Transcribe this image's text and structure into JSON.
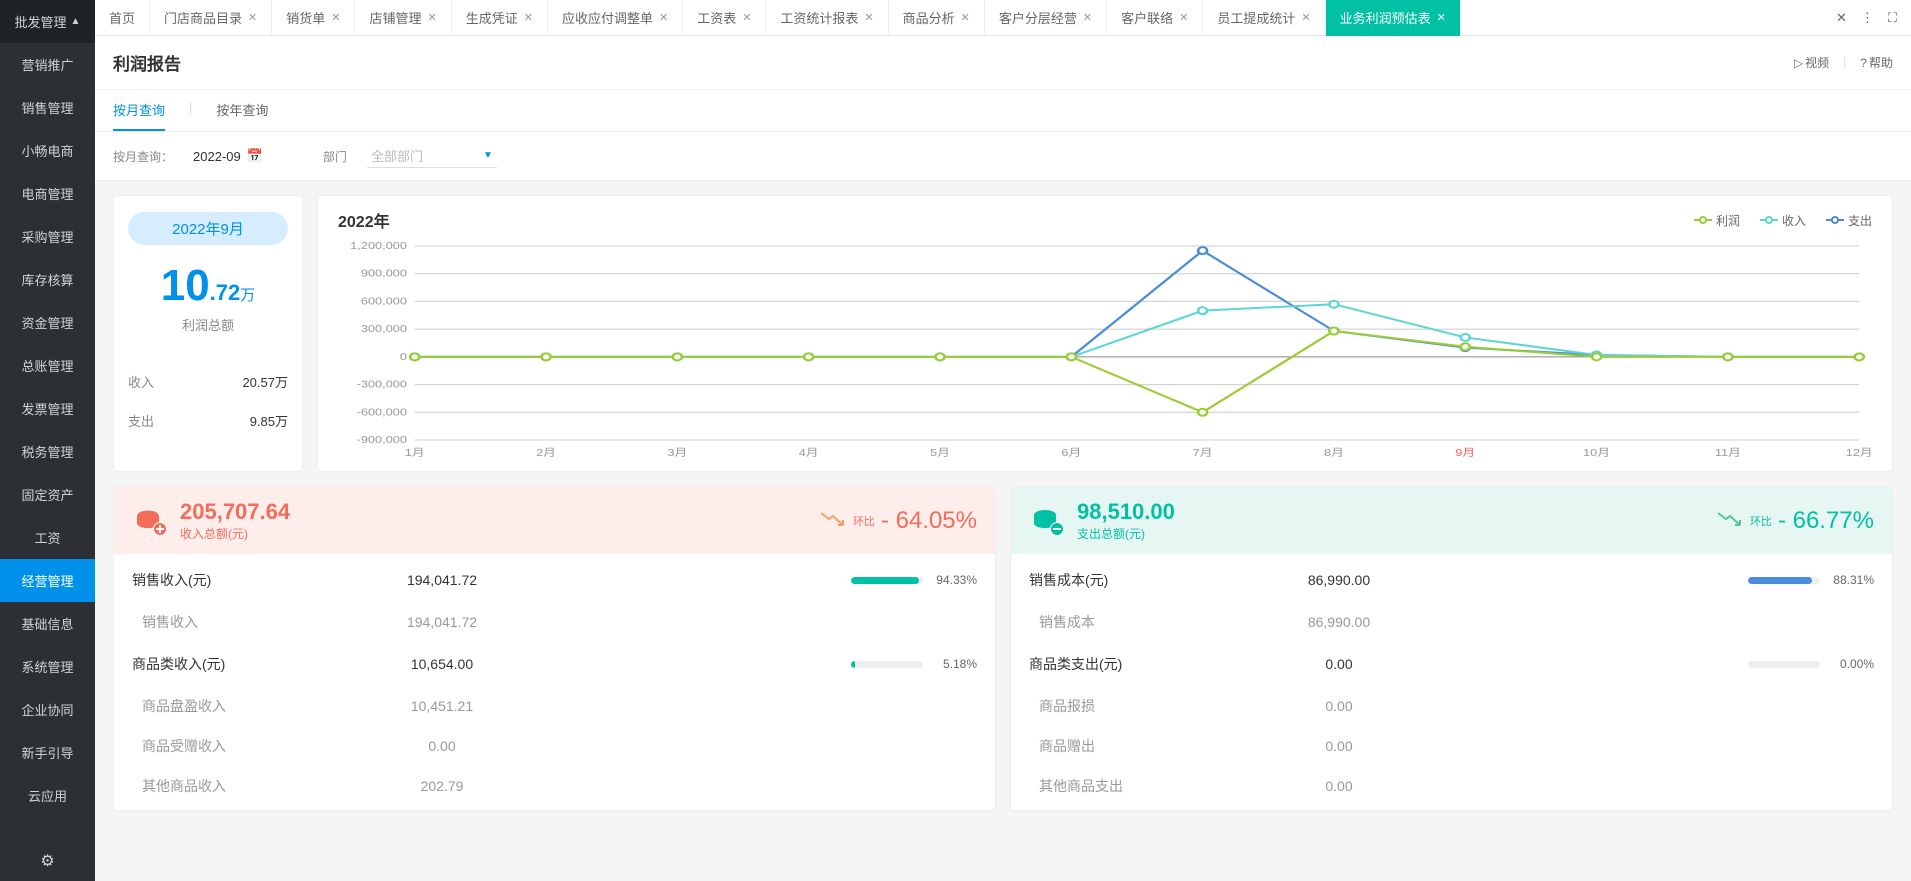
{
  "sidebar": {
    "header": "批发管理",
    "items": [
      {
        "label": "营销推广"
      },
      {
        "label": "销售管理"
      },
      {
        "label": "小畅电商"
      },
      {
        "label": "电商管理"
      },
      {
        "label": "采购管理"
      },
      {
        "label": "库存核算"
      },
      {
        "label": "资金管理"
      },
      {
        "label": "总账管理"
      },
      {
        "label": "发票管理"
      },
      {
        "label": "税务管理"
      },
      {
        "label": "固定资产"
      },
      {
        "label": "工资"
      },
      {
        "label": "经营管理",
        "active": true
      },
      {
        "label": "基础信息"
      },
      {
        "label": "系统管理"
      },
      {
        "label": "企业协同"
      },
      {
        "label": "新手引导"
      },
      {
        "label": "云应用"
      }
    ]
  },
  "tabs": [
    {
      "label": "首页",
      "closable": false
    },
    {
      "label": "门店商品目录",
      "closable": true
    },
    {
      "label": "销货单",
      "closable": true
    },
    {
      "label": "店铺管理",
      "closable": true
    },
    {
      "label": "生成凭证",
      "closable": true
    },
    {
      "label": "应收应付调整单",
      "closable": true
    },
    {
      "label": "工资表",
      "closable": true
    },
    {
      "label": "工资统计报表",
      "closable": true
    },
    {
      "label": "商品分析",
      "closable": true
    },
    {
      "label": "客户分层经营",
      "closable": true
    },
    {
      "label": "客户联络",
      "closable": true
    },
    {
      "label": "员工提成统计",
      "closable": true
    },
    {
      "label": "业务利润预估表",
      "closable": true,
      "active": true
    }
  ],
  "page": {
    "title": "利润报告",
    "video_label": "视频",
    "help_label": "帮助"
  },
  "subtabs": {
    "by_month": "按月查询",
    "by_year": "按年查询"
  },
  "filters": {
    "month_label": "按月查询：",
    "month_value": "2022-09",
    "dept_label": "部门",
    "dept_value": "全部部门"
  },
  "summary": {
    "badge": "2022年9月",
    "big_int": "10",
    "big_dec": ".72",
    "big_unit": "万",
    "sub_label": "利润总额",
    "income_label": "收入",
    "income_value": "20.57万",
    "expense_label": "支出",
    "expense_value": "9.85万"
  },
  "chart": {
    "title": "2022年",
    "legend": {
      "profit": "利润",
      "income": "收入",
      "expense": "支出"
    },
    "y_ticks": [
      -900000,
      -600000,
      -300000,
      0,
      300000,
      600000,
      900000,
      1200000
    ],
    "y_tick_labels": [
      "-900,000",
      "-600,000",
      "-300,000",
      "0",
      "300,000",
      "600,000",
      "900,000",
      "1,200,000"
    ],
    "x_labels": [
      "1月",
      "2月",
      "3月",
      "4月",
      "5月",
      "6月",
      "7月",
      "8月",
      "9月",
      "10月",
      "11月",
      "12月"
    ],
    "active_x_index": 8,
    "series": {
      "profit": [
        0,
        0,
        0,
        0,
        0,
        0,
        -600000,
        280000,
        110000,
        0,
        0,
        0
      ],
      "income": [
        0,
        0,
        0,
        0,
        0,
        0,
        500000,
        570000,
        210000,
        20000,
        0,
        0
      ],
      "expense": [
        0,
        0,
        0,
        0,
        0,
        0,
        1150000,
        280000,
        100000,
        20000,
        0,
        0
      ]
    },
    "colors": {
      "profit": "#9acd32",
      "income": "#5dd5d5",
      "expense": "#4a8cd8"
    },
    "ylim": [
      -900000,
      1200000
    ]
  },
  "income_panel": {
    "amount": "205,707.64",
    "label": "收入总额(元)",
    "hb": "环比",
    "change": "- 64.05%",
    "rows": [
      {
        "name": "销售收入(元)",
        "value": "194,041.72",
        "pct": "94.33%",
        "pct_num": 94.33,
        "main": true
      },
      {
        "name": "销售收入",
        "value": "194,041.72",
        "main": false
      },
      {
        "name": "商品类收入(元)",
        "value": "10,654.00",
        "pct": "5.18%",
        "pct_num": 5.18,
        "main": true
      },
      {
        "name": "商品盘盈收入",
        "value": "10,451.21",
        "main": false
      },
      {
        "name": "商品受赠收入",
        "value": "0.00",
        "main": false
      },
      {
        "name": "其他商品收入",
        "value": "202.79",
        "main": false
      }
    ]
  },
  "expense_panel": {
    "amount": "98,510.00",
    "label": "支出总额(元)",
    "hb": "环比",
    "change": "- 66.77%",
    "rows": [
      {
        "name": "销售成本(元)",
        "value": "86,990.00",
        "pct": "88.31%",
        "pct_num": 88.31,
        "main": true
      },
      {
        "name": "销售成本",
        "value": "86,990.00",
        "main": false
      },
      {
        "name": "商品类支出(元)",
        "value": "0.00",
        "pct": "0.00%",
        "pct_num": 0,
        "main": true
      },
      {
        "name": "商品报损",
        "value": "0.00",
        "main": false
      },
      {
        "name": "商品赠出",
        "value": "0.00",
        "main": false
      },
      {
        "name": "其他商品支出",
        "value": "0.00",
        "main": false
      }
    ]
  }
}
